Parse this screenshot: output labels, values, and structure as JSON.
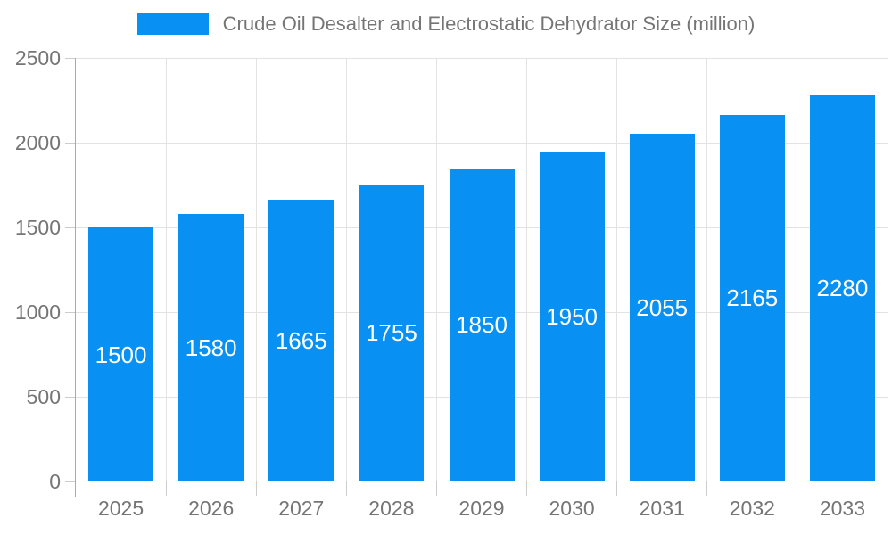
{
  "chart_data": {
    "type": "bar",
    "title": "Crude Oil Desalter and Electrostatic Dehydrator Size (million)",
    "categories": [
      "2025",
      "2026",
      "2027",
      "2028",
      "2029",
      "2030",
      "2031",
      "2032",
      "2033"
    ],
    "values": [
      1500,
      1580,
      1665,
      1755,
      1850,
      1950,
      2055,
      2165,
      2280
    ],
    "series": [
      {
        "name": "Crude Oil Desalter and Electrostatic Dehydrator Size (million)",
        "values": [
          1500,
          1580,
          1665,
          1755,
          1850,
          1950,
          2055,
          2165,
          2280
        ]
      }
    ],
    "xlabel": "",
    "ylabel": "",
    "ylim": [
      0,
      2500
    ],
    "yticks": [
      0,
      500,
      1000,
      1500,
      2000,
      2500
    ],
    "grid": true,
    "legend_position": "top-center",
    "value_label_placement": "inside-center",
    "colors": {
      "bar": "#0890f2",
      "gridline": "#e3e3e3",
      "axis_line": "#a9a9a9",
      "tick_mark": "#cccccc",
      "tick_text": "#757575",
      "value_text": "#ffffff",
      "background": "#ffffff"
    }
  }
}
